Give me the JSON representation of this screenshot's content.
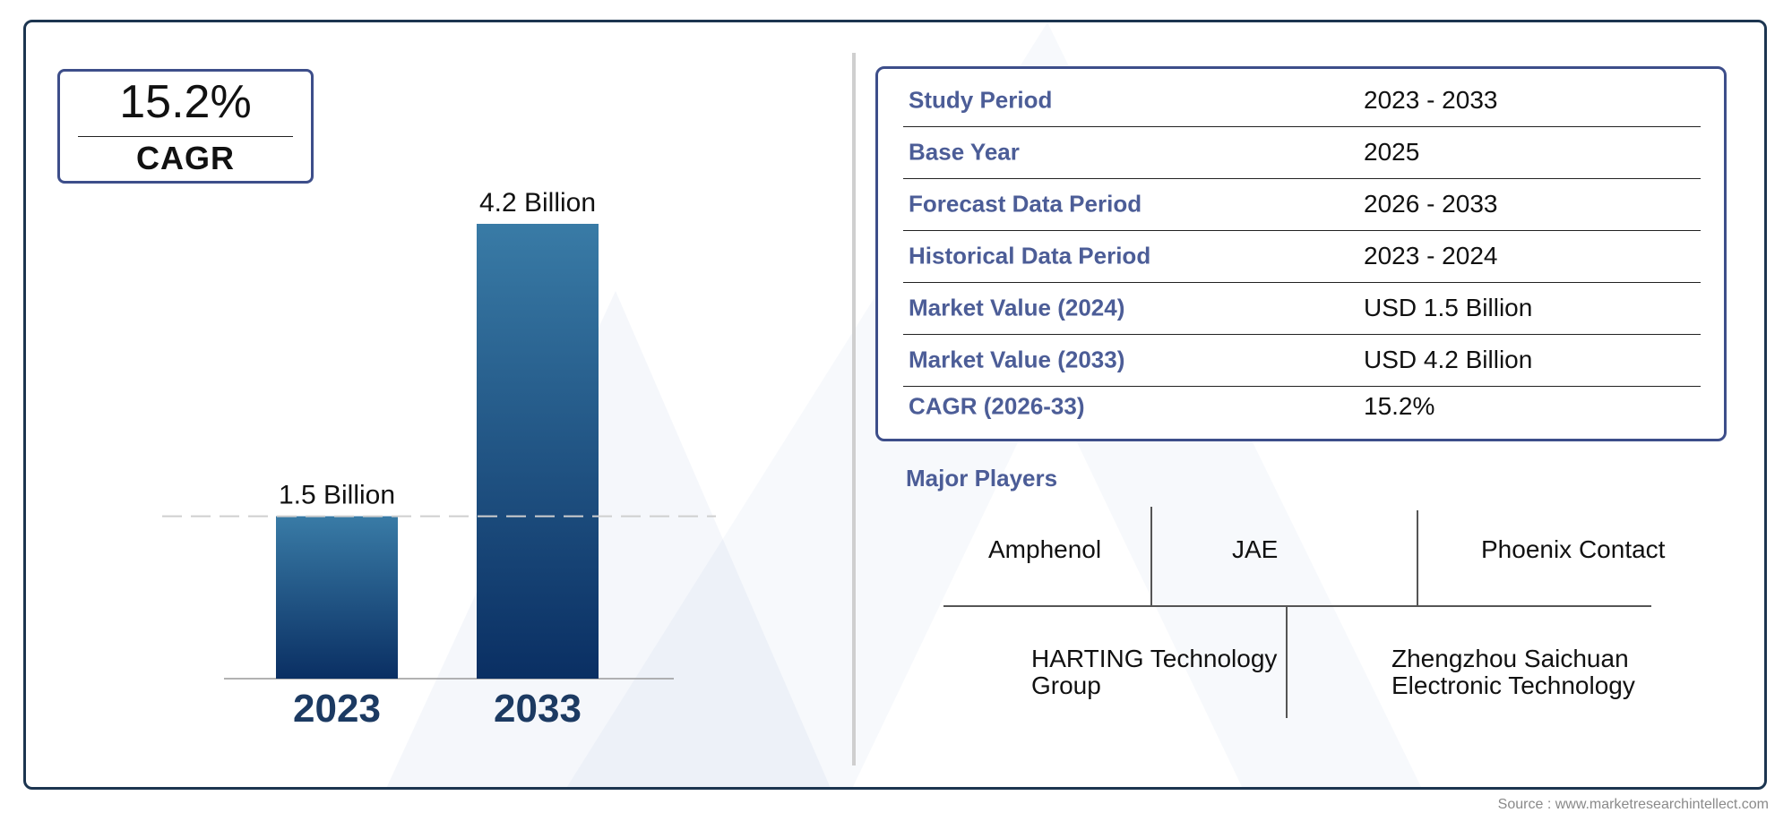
{
  "cagr": {
    "value": "15.2%",
    "label": "CAGR"
  },
  "chart_data": {
    "type": "bar",
    "categories": [
      "2023",
      "2033"
    ],
    "values": [
      1.5,
      4.2
    ],
    "data_labels": [
      "1.5 Billion",
      "4.2 Billion"
    ],
    "reference_line": 1.5,
    "ylim": [
      0,
      4.2
    ],
    "grid": false,
    "legend": "none",
    "colors": {
      "bar_top": "#397ba6",
      "bar_bottom": "#0a2f63",
      "category_label": "#1c3a62"
    }
  },
  "summary_table": {
    "rows": [
      {
        "label": "Study Period",
        "value": "2023 - 2033"
      },
      {
        "label": "Base Year",
        "value": "2025"
      },
      {
        "label": "Forecast Data Period",
        "value": "2026 - 2033"
      },
      {
        "label": "Historical Data Period",
        "value": "2023 - 2024"
      },
      {
        "label": "Market Value (2024)",
        "value": "USD 1.5 Billion"
      },
      {
        "label": "Market Value (2033)",
        "value": "USD 4.2 Billion"
      },
      {
        "label": "CAGR (2026-33)",
        "value": "15.2%"
      }
    ]
  },
  "players": {
    "title": "Major Players",
    "names": [
      "Amphenol",
      "JAE",
      "Phoenix Contact",
      "HARTING Technology Group",
      "Zhengzhou Saichuan Electronic Technology"
    ]
  },
  "source": "Source : www.marketresearchintellect.com",
  "colors": {
    "frame": "#1c3550",
    "accent": "#3d4e8a",
    "label_blue": "#4c5d97"
  }
}
